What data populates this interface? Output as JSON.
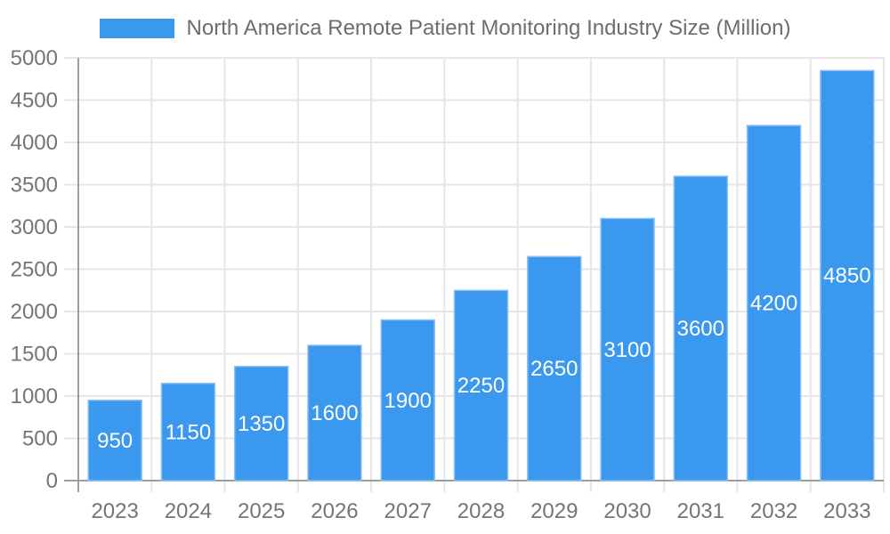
{
  "legend": {
    "label": "North America Remote Patient Monitoring Industry Size (Million)"
  },
  "chart_data": {
    "type": "bar",
    "title": "North America Remote Patient Monitoring Industry Size (Million)",
    "categories": [
      "2023",
      "2024",
      "2025",
      "2026",
      "2027",
      "2028",
      "2029",
      "2030",
      "2031",
      "2032",
      "2033"
    ],
    "values": [
      950,
      1150,
      1350,
      1600,
      1900,
      2250,
      2650,
      3100,
      3600,
      4200,
      4850
    ],
    "xlabel": "",
    "ylabel": "",
    "ylim": [
      0,
      5000
    ],
    "ytick_step": 500,
    "grid": true,
    "legend_position": "top",
    "value_labels": "inside-center"
  },
  "colors": {
    "bar": "#3a99ee",
    "bar_border": "#8cc0f4",
    "grid": "#e6e6e6",
    "axis": "#9e9e9e",
    "axis_text": "#757575",
    "legend_text": "#6d6d6d",
    "value_text": "#ffffff",
    "background": "#ffffff"
  }
}
